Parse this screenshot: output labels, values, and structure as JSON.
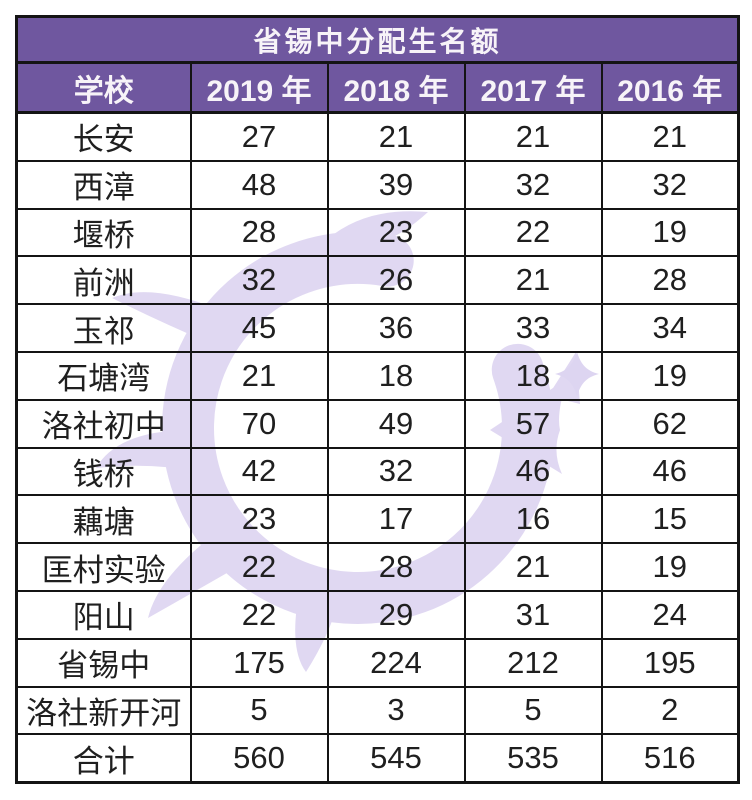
{
  "chart_data": {
    "type": "table",
    "title": "省锡中分配生名额",
    "columns": [
      "学校",
      "2019 年",
      "2018 年",
      "2017 年",
      "2016 年"
    ],
    "rows": [
      [
        "长安",
        27,
        21,
        21,
        21
      ],
      [
        "西漳",
        48,
        39,
        32,
        32
      ],
      [
        "堰桥",
        28,
        23,
        22,
        19
      ],
      [
        "前洲",
        32,
        26,
        21,
        28
      ],
      [
        "玉祁",
        45,
        36,
        33,
        34
      ],
      [
        "石塘湾",
        21,
        18,
        18,
        19
      ],
      [
        "洛社初中",
        70,
        49,
        57,
        62
      ],
      [
        "钱桥",
        42,
        32,
        46,
        46
      ],
      [
        "藕塘",
        23,
        17,
        16,
        15
      ],
      [
        "匡村实验",
        22,
        28,
        21,
        19
      ],
      [
        "阳山",
        22,
        29,
        31,
        24
      ],
      [
        "省锡中",
        175,
        224,
        212,
        195
      ],
      [
        "洛社新开河",
        5,
        3,
        5,
        2
      ],
      [
        "合计",
        560,
        545,
        535,
        516
      ]
    ],
    "totals_row_label": "合计",
    "layout_hints": "title row and header row purple with white bold text; black grid; light lavender logo watermark behind rows"
  },
  "watermark": {
    "name": "phoenix-swirl-logo",
    "color": "#d9cfef",
    "sparkle_color": "#d5cbee"
  },
  "colors": {
    "header_bg": "#6f579f",
    "header_text": "#f7f3f8",
    "body_text": "#1f1f1f",
    "border": "#141414",
    "background": "#ffffff"
  }
}
